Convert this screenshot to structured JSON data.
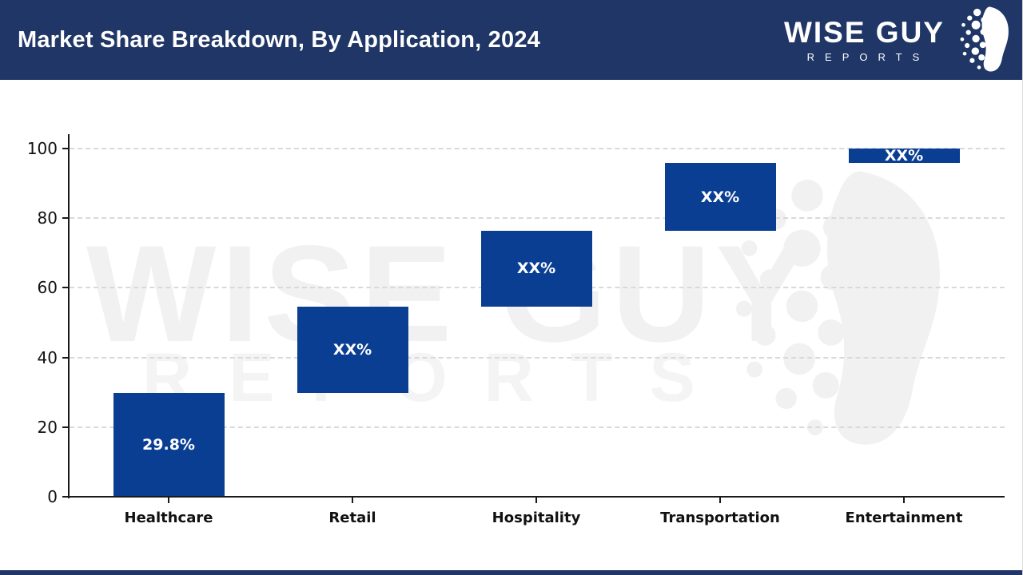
{
  "header": {
    "title": "Market Share Breakdown, By Application, 2024",
    "logo": {
      "line1": "WISE GUY",
      "line2": "REPORTS"
    }
  },
  "watermark": {
    "line1": "WISE GUY",
    "line2": "REPORTS"
  },
  "colors": {
    "header_bg": "#1f3666",
    "bar": "#0a3e92",
    "bar_label_text": "#ffffff",
    "gridline": "#d9d9d9",
    "axis": "#1a1a1a",
    "watermark": "#f1f1f1"
  },
  "chart_data": {
    "type": "bar",
    "subtype": "waterfall",
    "title": "Market Share Breakdown, By Application, 2024",
    "categories": [
      "Healthcare",
      "Retail",
      "Hospitality",
      "Transportation",
      "Entertainment"
    ],
    "series": [
      {
        "name": "Market share (%)",
        "segments": [
          {
            "category": "Healthcare",
            "start": 0,
            "end": 29.8,
            "label": "29.8%"
          },
          {
            "category": "Retail",
            "start": 29.8,
            "end": 54.7,
            "label": "XX%"
          },
          {
            "category": "Hospitality",
            "start": 54.7,
            "end": 76.3,
            "label": "XX%"
          },
          {
            "category": "Transportation",
            "start": 76.3,
            "end": 95.8,
            "label": "XX%"
          },
          {
            "category": "Entertainment",
            "start": 95.8,
            "end": 100,
            "label": "XX%"
          }
        ]
      }
    ],
    "xlabel": "",
    "ylabel": "",
    "ylim": [
      0,
      100
    ],
    "yticks": [
      0,
      20,
      40,
      60,
      80,
      100
    ],
    "grid": "horizontal dashed, behind bars",
    "legend": "none"
  }
}
